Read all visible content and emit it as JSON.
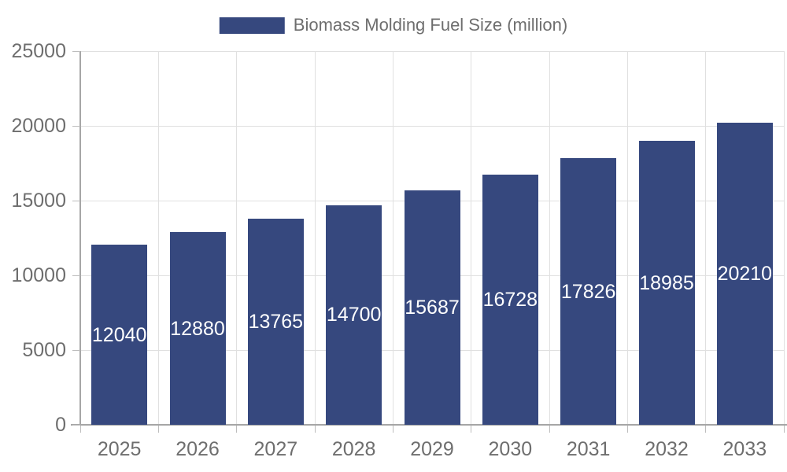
{
  "chart_data": {
    "type": "bar",
    "title": "Biomass Molding Fuel Size (million)",
    "legend": {
      "label": "Biomass Molding Fuel Size (million)",
      "position": "top-center"
    },
    "categories": [
      "2025",
      "2026",
      "2027",
      "2028",
      "2029",
      "2030",
      "2031",
      "2032",
      "2033"
    ],
    "values": [
      12040,
      12880,
      13765,
      14700,
      15687,
      16728,
      17826,
      18985,
      20210
    ],
    "value_labels_shown_inside_bars": true,
    "xlabel": "",
    "ylabel": "",
    "ylim": [
      0,
      25000
    ],
    "yticks": [
      0,
      5000,
      10000,
      15000,
      20000,
      25000
    ],
    "grid": true,
    "colors": {
      "bar": "#36487e",
      "value_label": "#ffffff",
      "grid_line": "#e0e0e0",
      "axis_line": "#a6a6a6",
      "tick_mark": "#bdbdbd",
      "tick_label": "#6e6e6e",
      "legend_text": "#6e6e6e",
      "background": "#ffffff"
    }
  }
}
